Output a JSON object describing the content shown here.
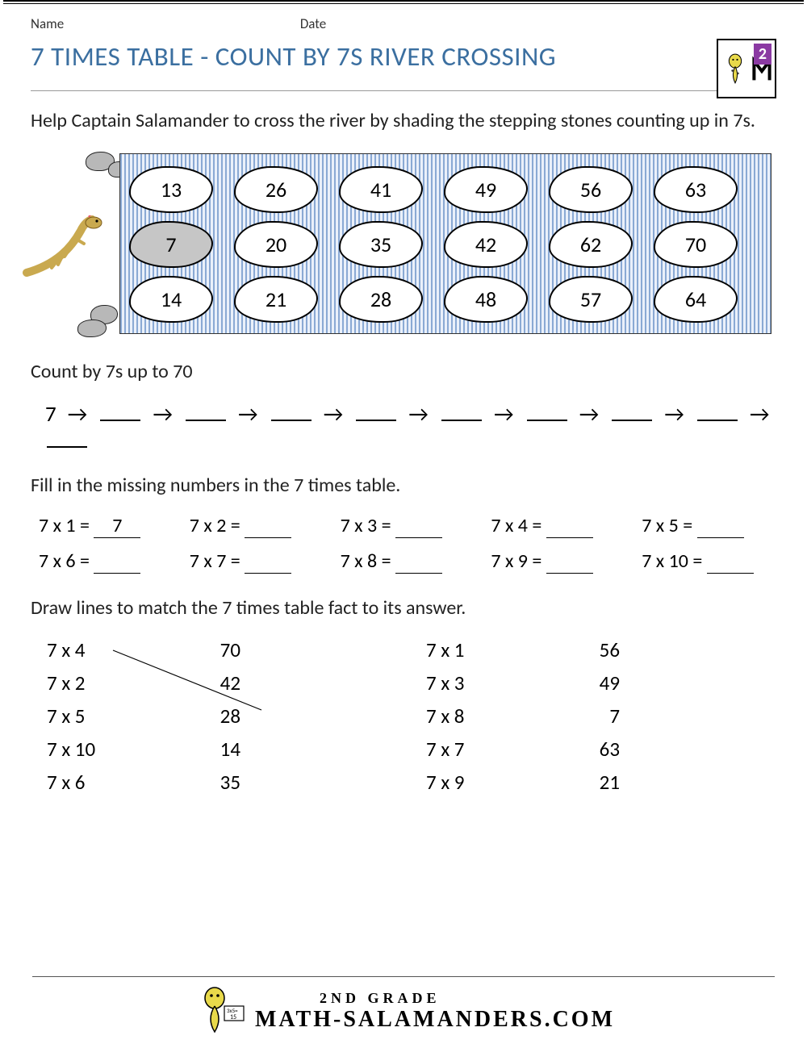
{
  "meta": {
    "name_label": "Name",
    "date_label": "Date"
  },
  "title": "7 TIMES TABLE - COUNT BY 7S RIVER CROSSING",
  "badge_number": "2",
  "instructions": {
    "river": "Help Captain Salamander to cross the river by shading the stepping stones counting up in 7s.",
    "count": "Count by 7s up to 70",
    "fill": "Fill in the missing numbers in the 7 times table.",
    "match": "Draw lines to match the 7 times table fact to its answer."
  },
  "river": {
    "background_colors": {
      "stripe1": "#8aa9d4",
      "stripe2": "#eaf0fa"
    },
    "rows": [
      [
        {
          "v": "13"
        },
        {
          "v": "26"
        },
        {
          "v": "41"
        },
        {
          "v": "49"
        },
        {
          "v": "56"
        },
        {
          "v": "63"
        }
      ],
      [
        {
          "v": "7",
          "start": true
        },
        {
          "v": "20"
        },
        {
          "v": "35"
        },
        {
          "v": "42"
        },
        {
          "v": "62"
        },
        {
          "v": "70"
        }
      ],
      [
        {
          "v": "14"
        },
        {
          "v": "21"
        },
        {
          "v": "28"
        },
        {
          "v": "48"
        },
        {
          "v": "57"
        },
        {
          "v": "64"
        }
      ]
    ]
  },
  "count_sequence": {
    "start": "7",
    "blanks": 9,
    "arrow": "→"
  },
  "times_table": [
    {
      "q": "7 x 1 =",
      "a": "7"
    },
    {
      "q": "7 x 2 =",
      "a": ""
    },
    {
      "q": "7 x 3 =",
      "a": ""
    },
    {
      "q": "7 x 4 =",
      "a": ""
    },
    {
      "q": "7 x 5 =",
      "a": ""
    },
    {
      "q": "7 x 6 =",
      "a": ""
    },
    {
      "q": "7 x 7 =",
      "a": ""
    },
    {
      "q": "7 x 8 =",
      "a": ""
    },
    {
      "q": "7 x 9 =",
      "a": ""
    },
    {
      "q": "7 x 10 =",
      "a": ""
    }
  ],
  "matching": {
    "left": [
      {
        "fact": "7 x 4",
        "ans": "70"
      },
      {
        "fact": "7 x 2",
        "ans": "42"
      },
      {
        "fact": "7 x 5",
        "ans": "28"
      },
      {
        "fact": "7 x 10",
        "ans": "14"
      },
      {
        "fact": "7 x 6",
        "ans": "35"
      }
    ],
    "right": [
      {
        "fact": "7 x 1",
        "ans": "56"
      },
      {
        "fact": "7 x 3",
        "ans": "49"
      },
      {
        "fact": "7 x 8",
        "ans": "7"
      },
      {
        "fact": "7 x 7",
        "ans": "63"
      },
      {
        "fact": "7 x 9",
        "ans": "21"
      }
    ],
    "example_line": {
      "from": "7 x 4",
      "to": "28"
    }
  },
  "footer": {
    "line1": "2ND GRADE",
    "line2": "MATH-SALAMANDERS.COM"
  },
  "colors": {
    "title": "#3b6fa0",
    "text": "#222222",
    "stone_border": "#000000",
    "stone_start_fill": "#c6c6c6"
  }
}
